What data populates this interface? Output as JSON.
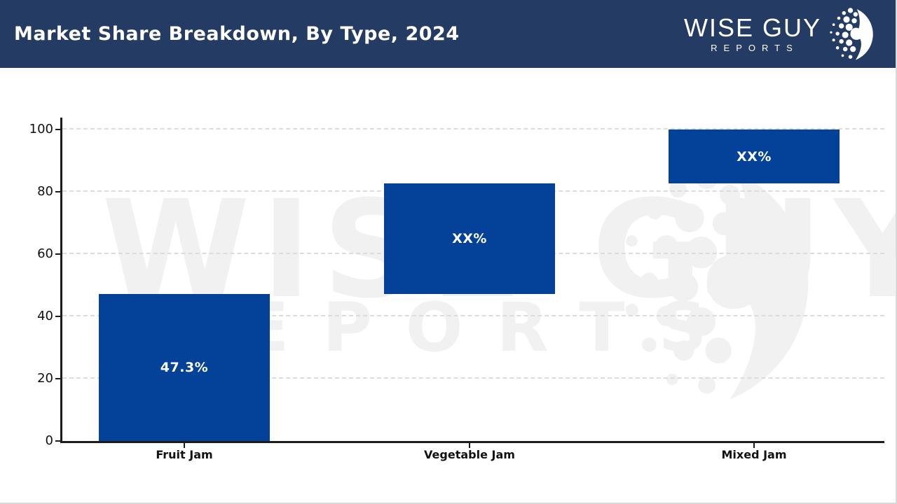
{
  "header": {
    "title": "Market Share Breakdown, By Type, 2024",
    "logo": {
      "line1": "WISE GUY",
      "line2": "REPORTS"
    }
  },
  "watermark": {
    "line1": "WISE GUY",
    "line2": "REPORTS"
  },
  "colors": {
    "header_bg": "#243b63",
    "bar": "#04429a",
    "bar_label": "#ffffff",
    "gridline": "#dcdcdc",
    "axis": "#1c1c1c",
    "watermark": "#f1f1f1"
  },
  "chart_data": {
    "type": "bar",
    "subtype": "stacked-waterfall",
    "title": "Market Share Breakdown, By Type, 2024",
    "categories": [
      "Fruit Jam",
      "Vegetable Jam",
      "Mixed Jam"
    ],
    "bars": [
      {
        "category": "Fruit Jam",
        "start": 0,
        "end": 47.3,
        "label": "47.3%"
      },
      {
        "category": "Vegetable Jam",
        "start": 47.3,
        "end": 82.6,
        "label": "XX%"
      },
      {
        "category": "Mixed Jam",
        "start": 82.6,
        "end": 100,
        "label": "XX%"
      }
    ],
    "yticks": [
      0,
      20,
      40,
      60,
      80,
      100
    ],
    "ylim": [
      0,
      107
    ],
    "xlabel": "",
    "ylabel": "",
    "grid": "dashed-horizontal",
    "legend": "none"
  }
}
